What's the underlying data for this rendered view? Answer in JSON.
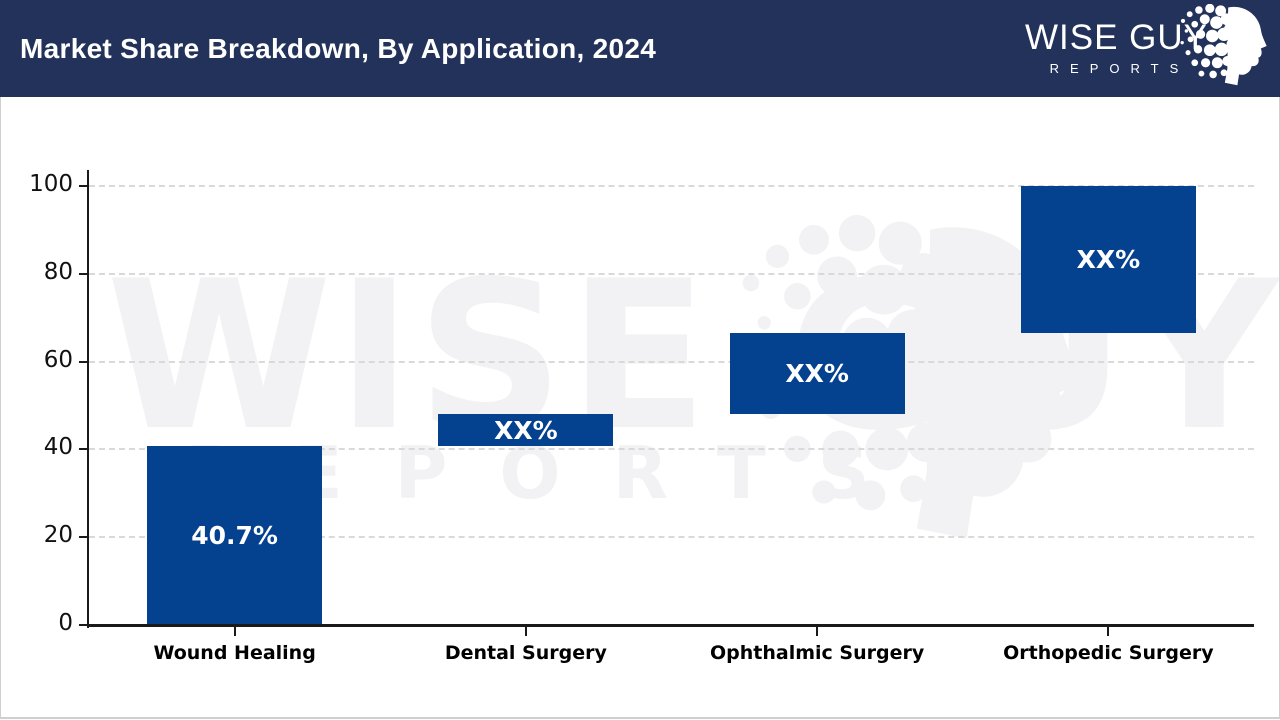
{
  "header": {
    "title": "Market Share Breakdown, By Application, 2024",
    "logo": {
      "wordmark": "WISE GUY",
      "subtitle": "REPORTS"
    }
  },
  "watermark": {
    "wordmark": "WISE GUY",
    "subtitle": "REPORTS"
  },
  "colors": {
    "header_bg": "#22325A",
    "bar": "#04418F",
    "bar_label": "#FFFFFF",
    "grid": "#D9D9D9",
    "axis": "#1A1A1A",
    "tick_label": "#111111",
    "category_label": "#000000",
    "watermark": "#F2F2F4",
    "page_border": "#CFCFCF"
  },
  "chart_data": {
    "type": "bar",
    "variant": "waterfall",
    "title": "Market Share Breakdown, By Application, 2024",
    "categories": [
      "Wound Healing",
      "Dental Surgery",
      "Ophthalmic Surgery",
      "Orthopedic Surgery"
    ],
    "segments": [
      {
        "category": "Wound Healing",
        "start": 0,
        "end": 40.7,
        "label": "40.7%"
      },
      {
        "category": "Dental Surgery",
        "start": 40.7,
        "end": 48,
        "label": "XX%"
      },
      {
        "category": "Ophthalmic Surgery",
        "start": 48,
        "end": 66.5,
        "label": "XX%"
      },
      {
        "category": "Orthopedic Surgery",
        "start": 66.5,
        "end": 100,
        "label": "XX%"
      }
    ],
    "xlabel": "",
    "ylabel": "",
    "yticks": [
      0,
      20,
      40,
      60,
      80,
      100
    ],
    "ylim": [
      0,
      104
    ],
    "grid": "horizontal-dashed",
    "legend": "none"
  }
}
